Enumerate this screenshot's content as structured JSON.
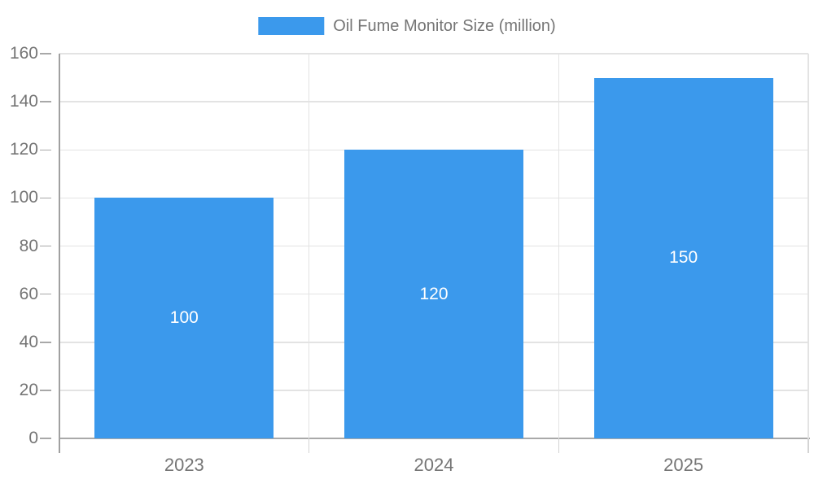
{
  "chart": {
    "legend": {
      "label": "Oil Fume Monitor Size (million)"
    },
    "colors": {
      "bar": "#3b99ec",
      "text": "#757575",
      "grid": "#e3e3e3",
      "axis": "#a0a0a0",
      "data_label": "#ffffff",
      "background": "#ffffff"
    },
    "chart_data": {
      "type": "bar",
      "title": "",
      "categories": [
        "2023",
        "2024",
        "2025"
      ],
      "series": [
        {
          "name": "Oil Fume Monitor Size (million)",
          "values": [
            100,
            120,
            150
          ],
          "data_labels": [
            "100",
            "120",
            "150"
          ],
          "color": "#3b99ec"
        }
      ],
      "xlabel": "",
      "ylabel": "",
      "ylim": [
        0,
        160
      ],
      "ytick_step": 20,
      "ytick_labels": [
        "0",
        "20",
        "40",
        "60",
        "80",
        "100",
        "120",
        "140",
        "160"
      ],
      "grid": "on",
      "legend_position": "top-center",
      "data_label_position": "inside-center"
    }
  }
}
